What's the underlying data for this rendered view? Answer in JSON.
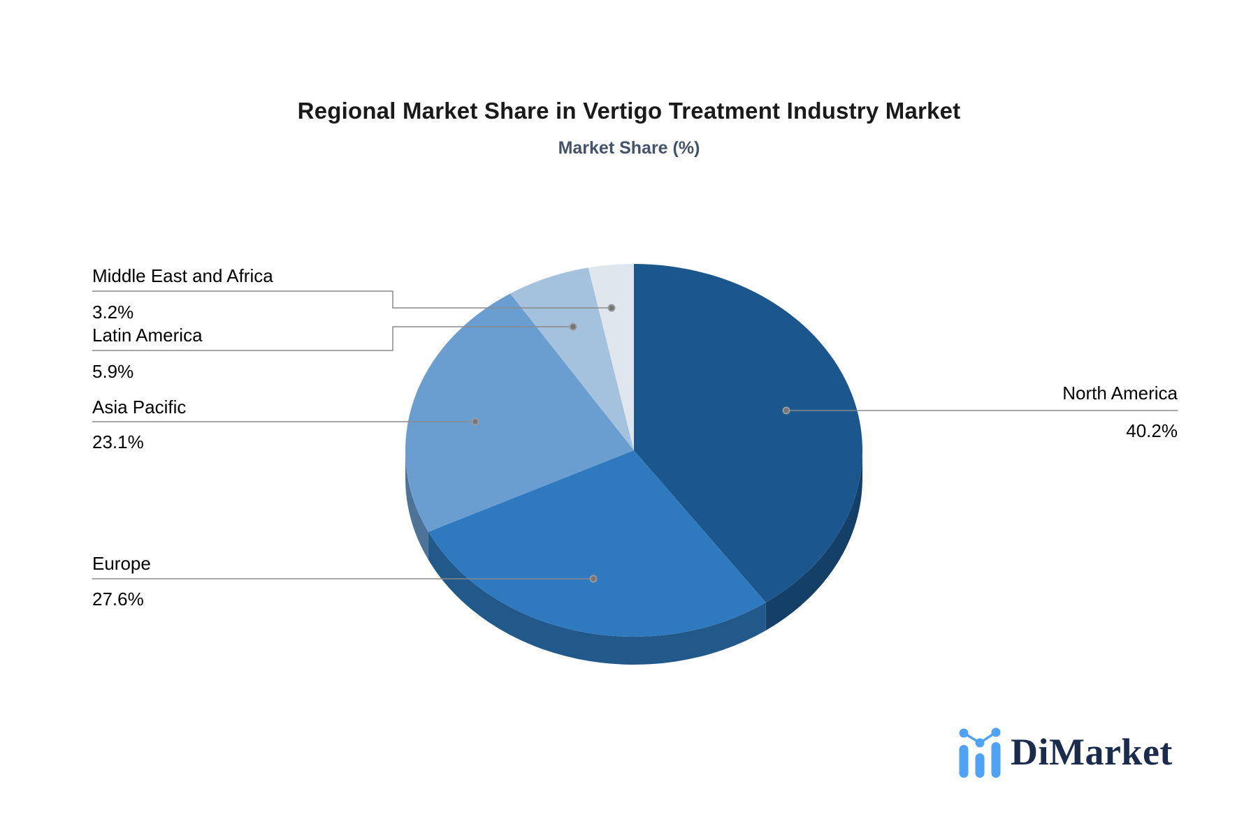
{
  "title": "Regional Market Share in Vertigo Treatment Industry Market",
  "subtitle": "Market Share (%)",
  "logo": {
    "text": "DiMarket",
    "icon": "bar-chart-with-trend-dots-icon",
    "icon_color": "#4fa3f7",
    "text_color": "#1a2b4c"
  },
  "chart_data": {
    "type": "pie",
    "style": "3d",
    "title": "Regional Market Share in Vertigo Treatment Industry Market",
    "subtitle": "Market Share (%)",
    "unit": "%",
    "categories": [
      "North America",
      "Europe",
      "Asia Pacific",
      "Latin America",
      "Middle East and Africa"
    ],
    "values": [
      40.2,
      27.6,
      23.1,
      5.9,
      3.2
    ],
    "colors": [
      "#1b578d",
      "#2f7abe",
      "#6a9ed0",
      "#a4c1dd",
      "#dfe6ee"
    ],
    "start_angle_deg": 0,
    "clockwise": true,
    "legend_position": "none",
    "labels_outside": true,
    "leader_line_color": "#8a8a8a",
    "labels": [
      {
        "name": "North America",
        "value_text": "40.2%"
      },
      {
        "name": "Europe",
        "value_text": "27.6%"
      },
      {
        "name": "Asia Pacific",
        "value_text": "23.1%"
      },
      {
        "name": "Latin America",
        "value_text": "5.9%"
      },
      {
        "name": "Middle East and Africa",
        "value_text": "3.2%"
      }
    ]
  }
}
